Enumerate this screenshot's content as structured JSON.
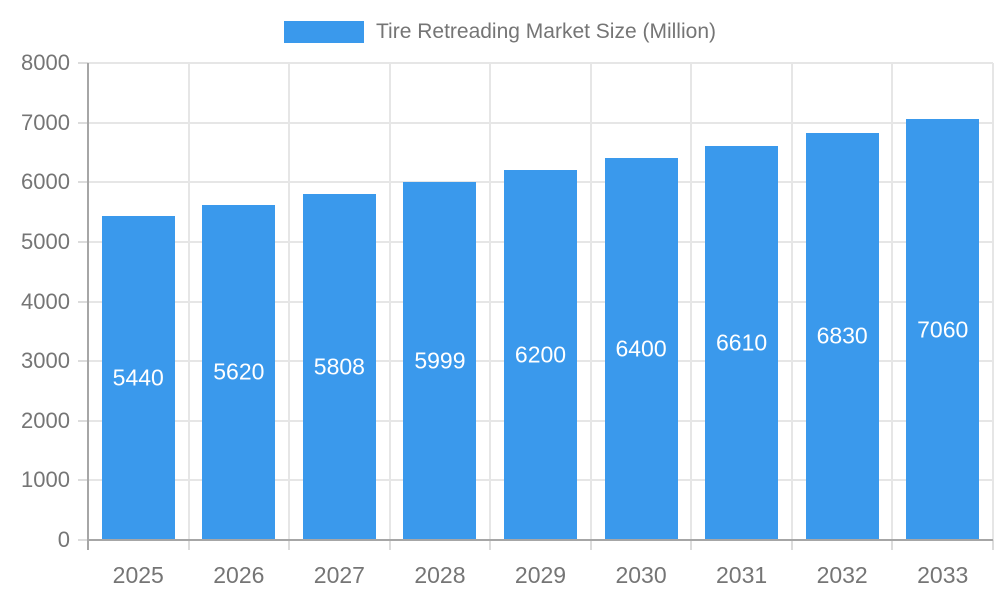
{
  "chart_data": {
    "type": "bar",
    "title": "Tire Retreading Market Size (Million)",
    "legend": {
      "position": "top-center",
      "entries": [
        "Tire Retreading Market Size (Million)"
      ]
    },
    "categories": [
      "2025",
      "2026",
      "2027",
      "2028",
      "2029",
      "2030",
      "2031",
      "2032",
      "2033"
    ],
    "values": [
      5440,
      5620,
      5808,
      5999,
      6200,
      6400,
      6610,
      6830,
      7060
    ],
    "xlabel": "",
    "ylabel": "",
    "ylim": [
      0,
      8000
    ],
    "ytick_step": 1000,
    "ytick_labels": [
      "0",
      "1000",
      "2000",
      "3000",
      "4000",
      "5000",
      "6000",
      "7000",
      "8000"
    ],
    "grid": true,
    "colors": {
      "bar": "#3A99EC",
      "bar_label": "#FFFFFF",
      "grid": "#E6E6E6",
      "tick": "#DCDCDC",
      "axis": "#A6A6A6",
      "label": "#757575",
      "background": "#FFFFFF"
    }
  }
}
